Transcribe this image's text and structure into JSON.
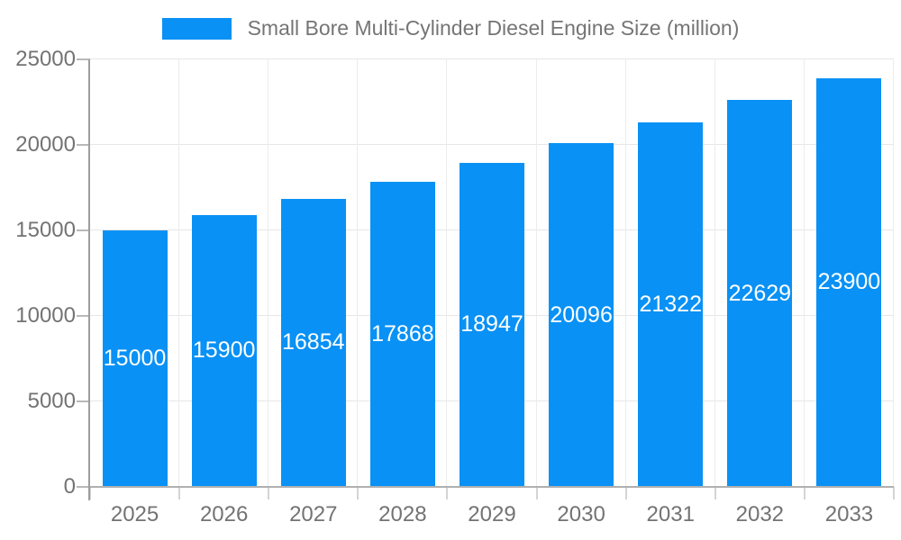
{
  "chart_data": {
    "type": "bar",
    "title": "Small Bore Multi-Cylinder Diesel Engine Size (million)",
    "legend": {
      "position": "top",
      "entries": [
        "Small Bore Multi-Cylinder Diesel Engine Size (million)"
      ]
    },
    "categories": [
      "2025",
      "2026",
      "2027",
      "2028",
      "2029",
      "2030",
      "2031",
      "2032",
      "2033"
    ],
    "values": [
      15000,
      15900,
      16854,
      17868,
      18947,
      20096,
      21322,
      22629,
      23900
    ],
    "bar_value_labels": [
      "15000",
      "15900",
      "16854",
      "17868",
      "18947",
      "20096",
      "21322",
      "22629",
      "23900"
    ],
    "xlabel": "",
    "ylabel": "",
    "ylim": [
      0,
      25000
    ],
    "yticks": [
      0,
      5000,
      10000,
      15000,
      20000,
      25000
    ],
    "grid": true,
    "colors": {
      "bar": "#0991f5",
      "bar_label": "#ffffff",
      "axis_text": "#737373",
      "legend_text": "#757575",
      "gridline": "#e7e7e7",
      "background": "#ffffff"
    }
  }
}
